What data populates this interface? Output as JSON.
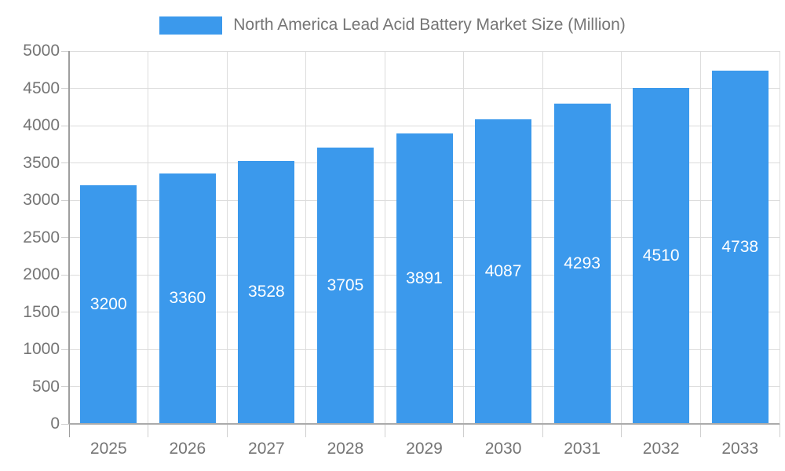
{
  "chart_data": {
    "type": "bar",
    "title": "North America Lead Acid Battery Market Size (Million)",
    "categories": [
      "2025",
      "2026",
      "2027",
      "2028",
      "2029",
      "2030",
      "2031",
      "2032",
      "2033"
    ],
    "values": [
      3200,
      3360,
      3528,
      3705,
      3891,
      4087,
      4293,
      4510,
      4738
    ],
    "xlabel": "",
    "ylabel": "",
    "ylim": [
      0,
      5000
    ],
    "ytick_step": 500,
    "ytick_labels": [
      "0",
      "500",
      "1000",
      "1500",
      "2000",
      "2500",
      "3000",
      "3500",
      "4000",
      "4500",
      "5000"
    ],
    "grid": true,
    "legend_position": "top-center",
    "data_labels_position": "inside-center",
    "colors": {
      "bar": "#3B99EC",
      "data_label": "#FFFFFF",
      "axis_text": "#757575",
      "legend_text": "#757575",
      "grid_line": "#DCDCDC",
      "tick_line": "#CFCFCF",
      "y_axis_line": "#9E9E9E",
      "x_axis_line": "#ABABAB"
    }
  }
}
